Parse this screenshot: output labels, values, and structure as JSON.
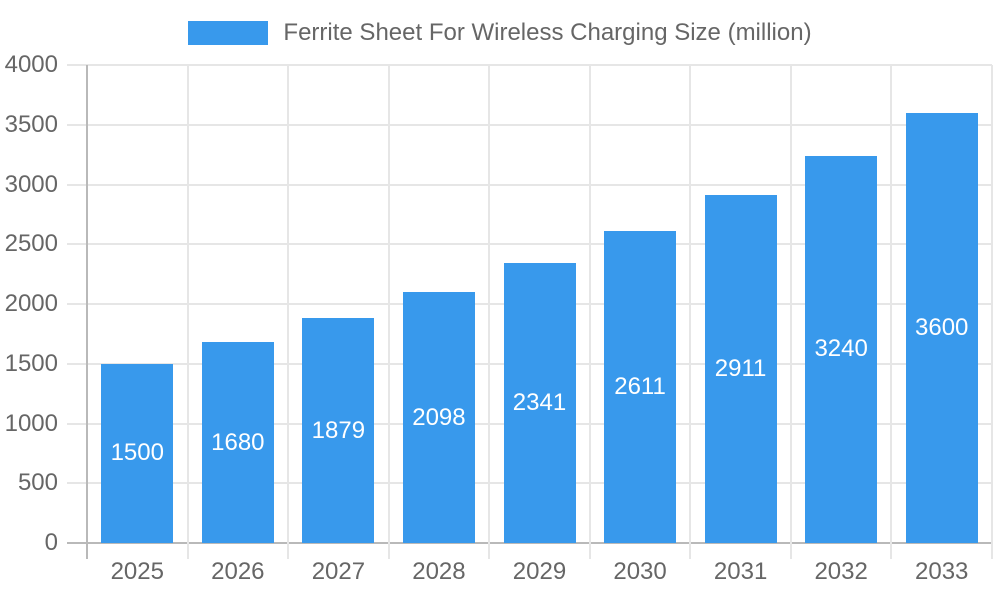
{
  "legend": {
    "position": "top",
    "label": "Ferrite Sheet For Wireless Charging Size (million)"
  },
  "chart_data": {
    "type": "bar",
    "title": "Ferrite Sheet For Wireless Charging Size (million)",
    "categories": [
      "2025",
      "2026",
      "2027",
      "2028",
      "2029",
      "2030",
      "2031",
      "2032",
      "2033"
    ],
    "values": [
      1500,
      1680,
      1879,
      2098,
      2341,
      2611,
      2911,
      3240,
      3600
    ],
    "series_name": "Ferrite Sheet For Wireless Charging Size (million)",
    "xlabel": "",
    "ylabel": "",
    "ylim": [
      0,
      4000
    ],
    "ytick_step": 500,
    "yticks": [
      0,
      500,
      1000,
      1500,
      2000,
      2500,
      3000,
      3500,
      4000
    ],
    "grid": true,
    "legend_position": "top",
    "value_label_position": "inside-center",
    "colors": {
      "bar": "#3899EC",
      "value_label": "#FFFFFF",
      "axis_text": "#666666",
      "legend_text": "#666666",
      "gridline": "#E6E6E6",
      "axis_line": "#B9B9B9",
      "background": "#FFFFFF"
    }
  }
}
